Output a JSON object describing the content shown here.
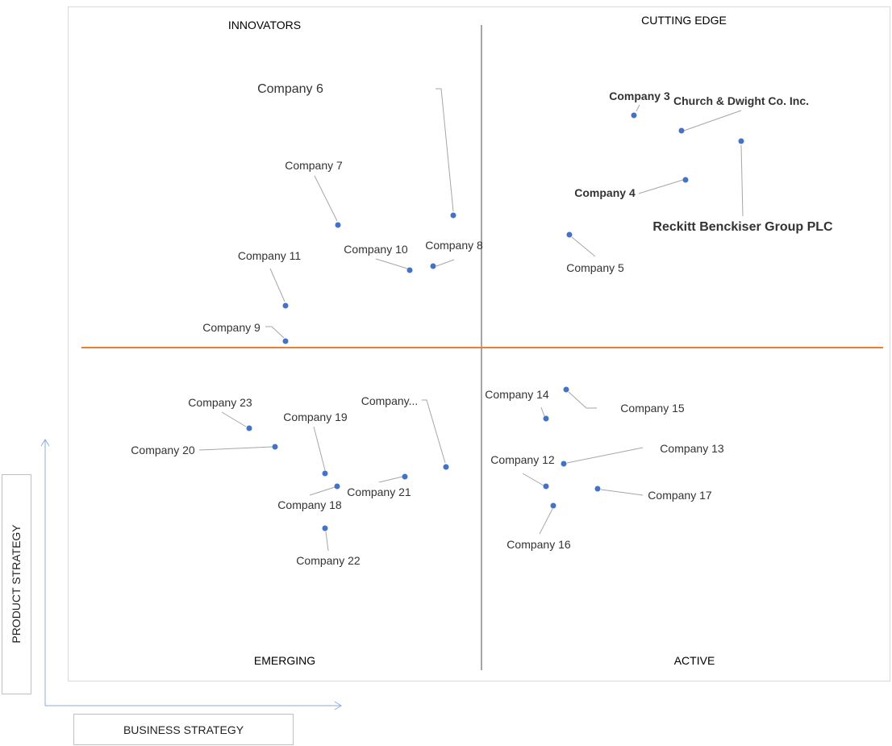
{
  "quadrants": {
    "top_left": "INNOVATORS",
    "top_right": "CUTTING EDGE",
    "bottom_left": "EMERGING",
    "bottom_right": "ACTIVE"
  },
  "axes": {
    "x_title": "BUSINESS STRATEGY",
    "y_title": "PRODUCT STRATEGY"
  },
  "colors": {
    "point": "#4472c4",
    "vertical_divider": "#a6a6a6",
    "horizontal_divider": "#ed7d31",
    "leader_line": "#a6a6a6",
    "axis_arrow": "#8faadc"
  },
  "chart_data": {
    "type": "scatter",
    "grid": false,
    "points": [
      {
        "label": "Company 3",
        "emphasis": "bold"
      },
      {
        "label": "Church & Dwight Co. Inc.",
        "emphasis": "bold"
      },
      {
        "label": "Reckitt Benckiser Group PLC",
        "emphasis": "bold-large"
      },
      {
        "label": "Company 4",
        "emphasis": "bold"
      },
      {
        "label": "Company 5",
        "emphasis": "normal"
      },
      {
        "label": "Company 6",
        "emphasis": "large"
      },
      {
        "label": "Company 7",
        "emphasis": "normal"
      },
      {
        "label": "Company 8",
        "emphasis": "normal"
      },
      {
        "label": "Company 10",
        "emphasis": "normal"
      },
      {
        "label": "Company 11",
        "emphasis": "normal"
      },
      {
        "label": "Company 9",
        "emphasis": "normal"
      },
      {
        "label": "Company 14",
        "emphasis": "normal"
      },
      {
        "label": "Company 15",
        "emphasis": "normal"
      },
      {
        "label": "Company 13",
        "emphasis": "normal"
      },
      {
        "label": "Company 12",
        "emphasis": "normal"
      },
      {
        "label": "Company 17",
        "emphasis": "normal"
      },
      {
        "label": "Company 16",
        "emphasis": "normal"
      },
      {
        "label": "Company...",
        "emphasis": "normal"
      },
      {
        "label": "Company 23",
        "emphasis": "normal"
      },
      {
        "label": "Company 19",
        "emphasis": "normal"
      },
      {
        "label": "Company 20",
        "emphasis": "normal"
      },
      {
        "label": "Company 21",
        "emphasis": "normal"
      },
      {
        "label": "Company 18",
        "emphasis": "normal"
      },
      {
        "label": "Company 22",
        "emphasis": "normal"
      }
    ]
  }
}
